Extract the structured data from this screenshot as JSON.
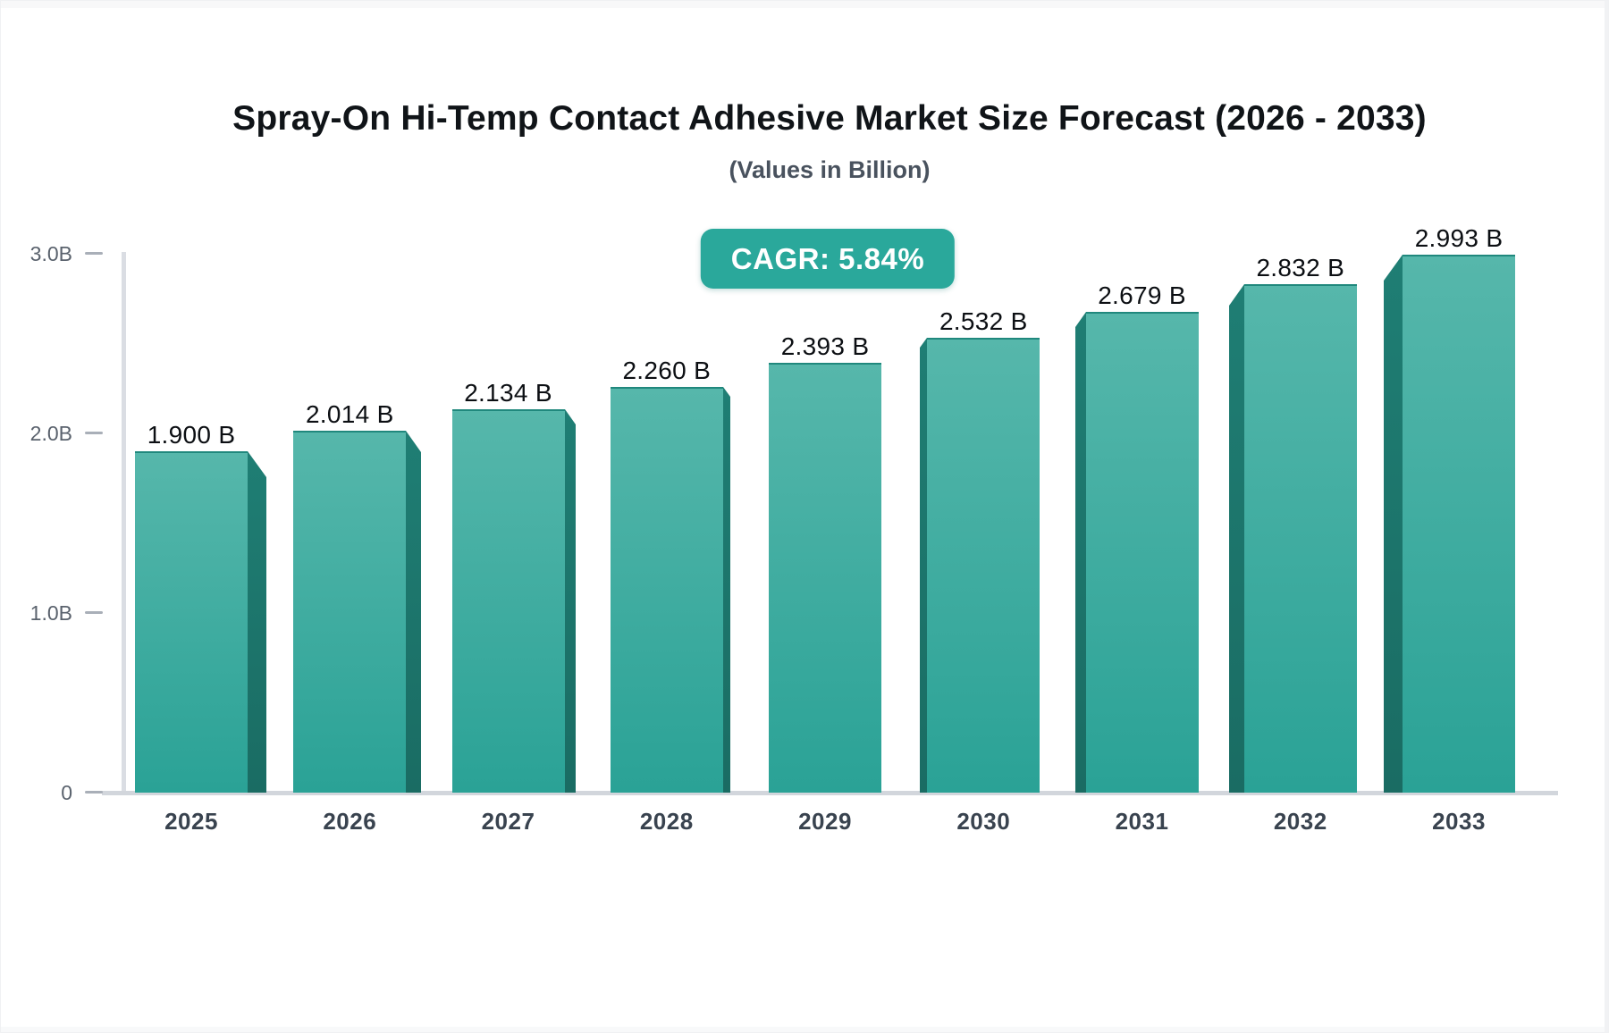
{
  "header": {
    "title": "Spray-On Hi-Temp Contact Adhesive Market Size Forecast (2026 - 2033)",
    "subtitle": "(Values in Billion)"
  },
  "badge": {
    "label": "CAGR: 5.84%"
  },
  "chart_data": {
    "type": "bar",
    "title": "Spray-On Hi-Temp Contact Adhesive Market Size Forecast (2026 - 2033)",
    "subtitle": "(Values in Billion)",
    "cagr_label": "CAGR: 5.84%",
    "categories": [
      "2025",
      "2026",
      "2027",
      "2028",
      "2029",
      "2030",
      "2031",
      "2032",
      "2033"
    ],
    "values": [
      1.9,
      2.014,
      2.134,
      2.26,
      2.393,
      2.532,
      2.679,
      2.832,
      2.993
    ],
    "value_labels": [
      "1.900 B",
      "2.014 B",
      "2.134 B",
      "2.260 B",
      "2.393 B",
      "2.532 B",
      "2.679 B",
      "2.832 B",
      "2.993 B"
    ],
    "unit": "Billion",
    "xlabel": "",
    "ylabel": "",
    "ylim": [
      0,
      3.0
    ],
    "y_ticks": [
      {
        "label": "0",
        "value": 0
      },
      {
        "label": "1.0B",
        "value": 1.0
      },
      {
        "label": "2.0B",
        "value": 2.0
      },
      {
        "label": "3.0B",
        "value": 3.0
      }
    ],
    "grid": false,
    "legend": false,
    "colors": {
      "bar_face_top": "#56b7ab",
      "bar_face_bottom": "#2aa296",
      "bar_side": "#1f7e74",
      "bar_side_dark": "#1a6c63",
      "badge_bg": "#2aa89b",
      "badge_text": "#ffffff",
      "axis": "#d2d6dc",
      "title_text": "#101418",
      "subtitle_text": "#49525e"
    }
  }
}
